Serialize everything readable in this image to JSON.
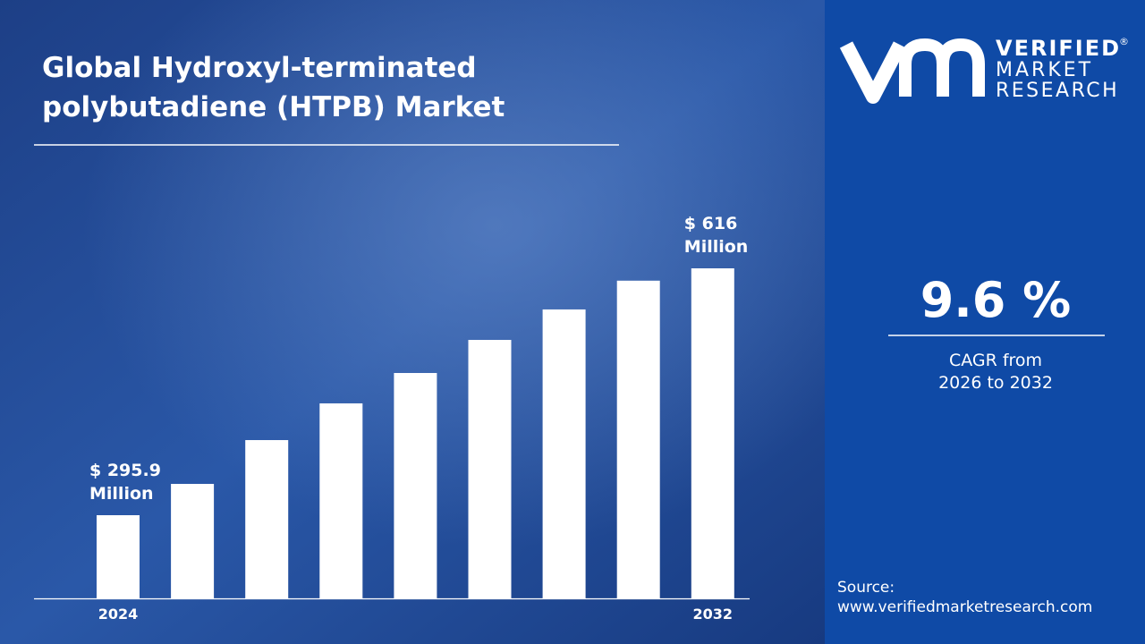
{
  "chart_data": {
    "type": "bar",
    "title": "Global Hydroxyl-terminated polybutadiene (HTPB) Market",
    "categories": [
      "2024",
      null,
      null,
      null,
      null,
      null,
      null,
      null,
      "2032"
    ],
    "values": [
      295.9,
      336.5,
      393.3,
      440.9,
      480.3,
      523.2,
      562.7,
      600,
      616
    ],
    "value_labels": [
      "$ 295.9 Million",
      null,
      null,
      null,
      null,
      null,
      null,
      null,
      "$ 616 Million"
    ],
    "color": "#ffffff"
  },
  "brand": {
    "line1": "VERIFIED",
    "line2": "MARKET",
    "line3": "RESEARCH"
  },
  "cagr": {
    "value": "9.6 %",
    "line1": "CAGR from",
    "line2": "2026 to 2032"
  },
  "source": {
    "label": "Source:",
    "url": "www.verifiedmarketresearch.com"
  }
}
